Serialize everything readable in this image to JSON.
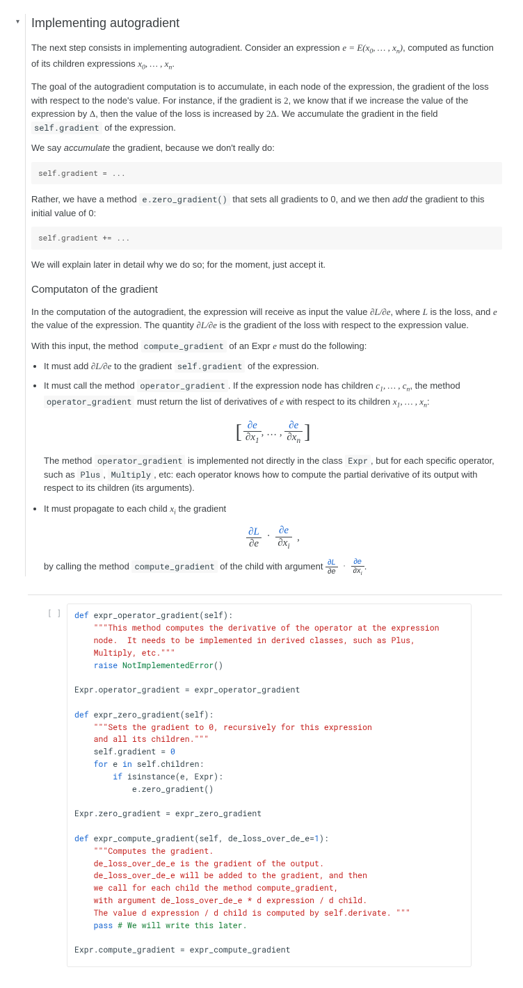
{
  "section": {
    "title": "Implementing autogradient",
    "p1_a": "The next step consists in implementing autogradient. Consider an expression ",
    "p1_b": ", computed as function of its children expressions ",
    "p1_c": ".",
    "p2_a": "The goal of the autogradient computation is to accumulate, in each node of the expression, the gradient of the loss with respect to the node's value. For instance, if the gradient is ",
    "p2_b": ", we know that if we increase the value of the expression by ",
    "p2_c": ", then the value of the loss is increased by ",
    "p2_d": ". We accumulate the gradient in the field ",
    "p2_e": " of the expression.",
    "p3_a": "We say ",
    "p3_em": "accumulate",
    "p3_b": " the gradient, because we don't really do:",
    "code1": "self.gradient = ...",
    "p4_a": "Rather, we have a method ",
    "p4_b": " that sets all gradients to 0, and we then ",
    "p4_em": "add",
    "p4_c": " the gradient to this initial value of 0:",
    "code2": "self.gradient += ...",
    "p5": "We will explain later in detail why we do so; for the moment, just accept it.",
    "sub_title": "Computaton of the gradient",
    "p6_a": "In the computation of the autogradient, the expression will receive as input the value ",
    "p6_b": ", where ",
    "p6_c": " is the loss, and ",
    "p6_d": " the value of the expression. The quantity ",
    "p6_e": " is the gradient of the loss with respect to the expression value.",
    "p7_a": "With this input, the method ",
    "p7_b": " of an Expr ",
    "p7_c": " must do the following:",
    "li1_a": "It must add ",
    "li1_b": " to the gradient ",
    "li1_c": " of the expression.",
    "li2_a": "It must call the method ",
    "li2_b": ". If the expression node has children ",
    "li2_c": ", the method ",
    "li2_d": " must return the list of derivatives of ",
    "li2_e": " with respect to its children ",
    "li2_f": ":",
    "li2_p2_a": "The method ",
    "li2_p2_b": " is implemented not directly in the class ",
    "li2_p2_c": ", but for each specific operator, such as ",
    "li2_p2_d": ", ",
    "li2_p2_e": ", etc: each operator knows how to compute the partial derivative of its output with respect to its children (its arguments).",
    "li3_a": "It must propagate to each child ",
    "li3_b": " the gradient",
    "li3_p2_a": "by calling the method ",
    "li3_p2_b": " of the child with argument ",
    "li3_p2_c": ".",
    "inline": {
      "self_gradient": "self.gradient",
      "zero_gradient": "e.zero_gradient()",
      "compute_gradient": "compute_gradient",
      "operator_gradient": "operator_gradient",
      "Expr": "Expr",
      "Plus": "Plus",
      "Multiply": "Multiply"
    },
    "math": {
      "e_eq_E": "e = E(x",
      "two": "2",
      "dLde": "∂L/∂e",
      "comma": ",",
      "dot": "·"
    }
  },
  "cell": {
    "prompt": "[ ]",
    "colors": {
      "keyword": "#1967d2",
      "string": "#c5221f",
      "docstring": "#0d652d",
      "comment": "#188038",
      "error": "#d93025",
      "text": "#37474f",
      "border": "#e8e8e8"
    },
    "lines": [
      {
        "t": "def ",
        "c": "kw",
        "r": [
          {
            "t": "expr_operator_gradient",
            "c": ""
          },
          {
            "t": "(self):",
            "c": ""
          }
        ]
      },
      {
        "indent": 1,
        "t": "\"\"\"This method computes the derivative of the operator at the expression",
        "c": "str"
      },
      {
        "indent": 1,
        "t": "node.  It needs to be implemented in derived classes, such as Plus,",
        "c": "str"
      },
      {
        "indent": 1,
        "t": "Multiply, etc.\"\"\"",
        "c": "str"
      },
      {
        "indent": 1,
        "parts": [
          {
            "t": "raise ",
            "c": "kw"
          },
          {
            "t": "NotImplementedError",
            "c": "name-teal"
          },
          {
            "t": "()",
            "c": ""
          }
        ]
      },
      {
        "blank": true
      },
      {
        "t": "Expr.operator_gradient = expr_operator_gradient",
        "c": ""
      },
      {
        "blank": true
      },
      {
        "parts": [
          {
            "t": "def ",
            "c": "kw"
          },
          {
            "t": "expr_zero_gradient",
            "c": ""
          },
          {
            "t": "(self):",
            "c": ""
          }
        ]
      },
      {
        "indent": 1,
        "t": "\"\"\"Sets the gradient to 0, recursively for this expression",
        "c": "str"
      },
      {
        "indent": 1,
        "t": "and all its children.\"\"\"",
        "c": "str"
      },
      {
        "indent": 1,
        "parts": [
          {
            "t": "self.gradient = ",
            "c": ""
          },
          {
            "t": "0",
            "c": "kw"
          }
        ]
      },
      {
        "indent": 1,
        "parts": [
          {
            "t": "for ",
            "c": "kw"
          },
          {
            "t": "e ",
            "c": ""
          },
          {
            "t": "in ",
            "c": "kw"
          },
          {
            "t": "self.children:",
            "c": ""
          }
        ]
      },
      {
        "indent": 2,
        "parts": [
          {
            "t": "if ",
            "c": "kw"
          },
          {
            "t": "isinstance(e, Expr):",
            "c": ""
          }
        ]
      },
      {
        "indent": 3,
        "t": "e.zero_gradient()",
        "c": ""
      },
      {
        "blank": true
      },
      {
        "t": "Expr.zero_gradient = expr_zero_gradient",
        "c": ""
      },
      {
        "blank": true
      },
      {
        "parts": [
          {
            "t": "def ",
            "c": "kw"
          },
          {
            "t": "expr_compute_gradient",
            "c": ""
          },
          {
            "t": "(self, de_loss_over_de_e=",
            "c": ""
          },
          {
            "t": "1",
            "c": "kw"
          },
          {
            "t": "):",
            "c": ""
          }
        ]
      },
      {
        "indent": 1,
        "t": "\"\"\"Computes the gradient.",
        "c": "str"
      },
      {
        "indent": 1,
        "t": "de_loss_over_de_e is the gradient of the output.",
        "c": "str"
      },
      {
        "indent": 1,
        "t": "de_loss_over_de_e will be added to the gradient, and then",
        "c": "str"
      },
      {
        "indent": 1,
        "t": "we call for each child the method compute_gradient,",
        "c": "str"
      },
      {
        "indent": 1,
        "t": "with argument de_loss_over_de_e * d expression / d child.",
        "c": "str"
      },
      {
        "indent": 1,
        "t": "The value d expression / d child is computed by self.derivate. \"\"\"",
        "c": "str"
      },
      {
        "indent": 1,
        "parts": [
          {
            "t": "pass ",
            "c": "kw"
          },
          {
            "t": "# We will write this later.",
            "c": "cmt"
          }
        ]
      },
      {
        "blank": true
      },
      {
        "t": "Expr.compute_gradient = expr_compute_gradient",
        "c": ""
      }
    ]
  }
}
